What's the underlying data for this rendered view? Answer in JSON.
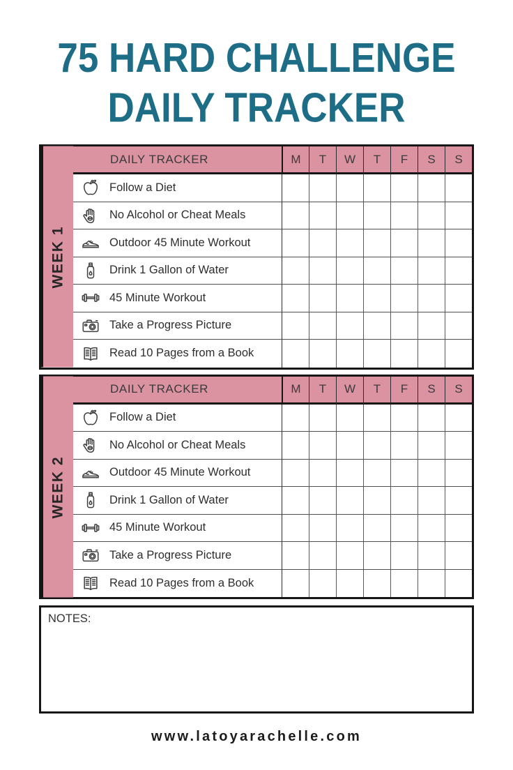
{
  "title": {
    "line1": "75 HARD CHALLENGE",
    "line2": "DAILY TRACKER"
  },
  "colors": {
    "accent_teal": "#1E6D87",
    "accent_pink": "#DB92A1"
  },
  "table": {
    "header_label": "DAILY TRACKER",
    "days": [
      "M",
      "T",
      "W",
      "T",
      "F",
      "S",
      "S"
    ],
    "tasks": [
      {
        "icon": "apple-icon",
        "label": "Follow a Diet"
      },
      {
        "icon": "hand-stop-icon",
        "label": "No Alcohol or Cheat Meals"
      },
      {
        "icon": "sneaker-icon",
        "label": "Outdoor 45 Minute Workout"
      },
      {
        "icon": "water-bottle-icon",
        "label": "Drink 1 Gallon of Water"
      },
      {
        "icon": "dumbbell-icon",
        "label": "45 Minute Workout"
      },
      {
        "icon": "camera-icon",
        "label": "Take a Progress Picture"
      },
      {
        "icon": "book-icon",
        "label": "Read 10 Pages from a Book"
      }
    ]
  },
  "weeks": [
    {
      "label": "WEEK 1"
    },
    {
      "label": "WEEK 2"
    }
  ],
  "notes": {
    "label": "NOTES:"
  },
  "footer": {
    "url": "www.latoyarachelle.com"
  }
}
